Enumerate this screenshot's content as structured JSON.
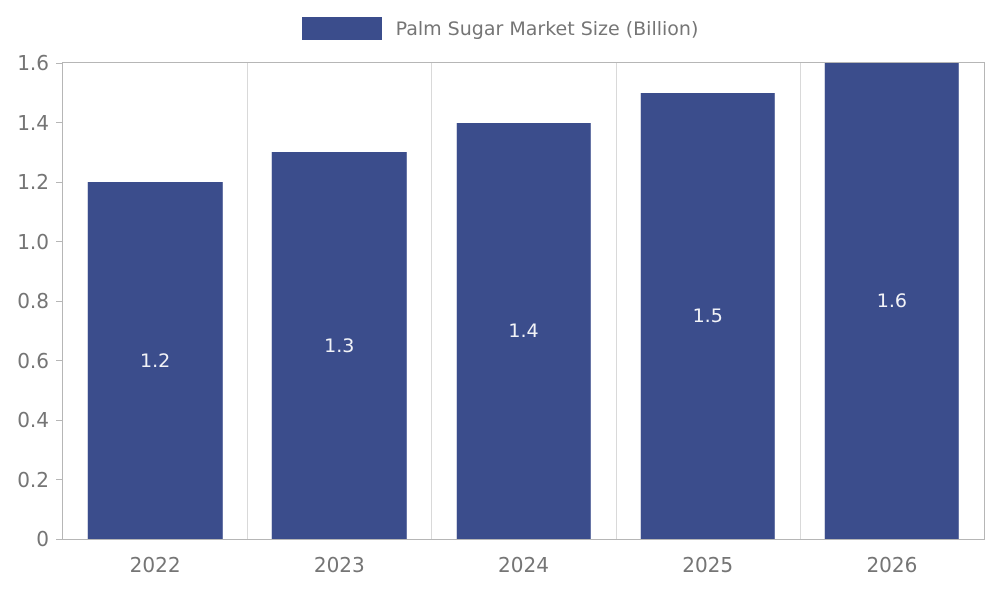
{
  "chart_data": {
    "type": "bar",
    "title": "Palm Sugar Market Size (Billion)",
    "categories": [
      "2022",
      "2023",
      "2024",
      "2025",
      "2026"
    ],
    "values": [
      1.2,
      1.3,
      1.4,
      1.5,
      1.6
    ],
    "bar_labels": [
      "1.2",
      "1.3",
      "1.4",
      "1.5",
      "1.6"
    ],
    "xlabel": "",
    "ylabel": "",
    "ylim": [
      0,
      1.6
    ],
    "yticks": [
      0,
      0.2,
      0.4,
      0.6,
      0.8,
      1.0,
      1.2,
      1.4,
      1.6
    ],
    "ytick_labels": [
      "0",
      "0.2",
      "0.4",
      "0.6",
      "0.8",
      "1.0",
      "1.2",
      "1.4",
      "1.6"
    ],
    "grid": "vertical-at-category-boundaries",
    "legend_position": "top-center",
    "bar_color": "#3b4d8c",
    "axis_text_color": "#757575",
    "bar_label_color": "#f2f3f7"
  }
}
